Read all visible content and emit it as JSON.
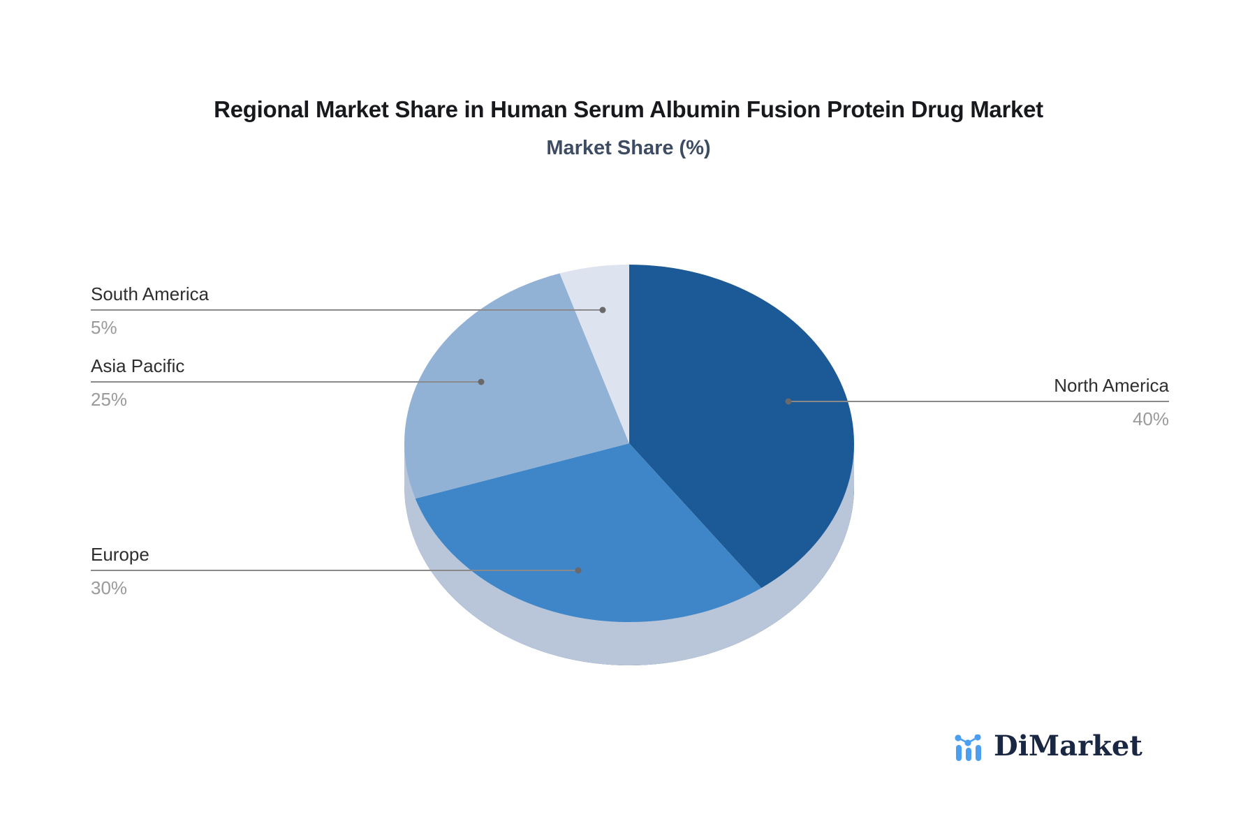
{
  "title": "Regional Market Share in Human Serum Albumin Fusion Protein Drug Market",
  "subtitle": "Market Share (%)",
  "chart_data": {
    "type": "pie",
    "style": "3d",
    "title": "Regional Market Share in Human Serum Albumin Fusion Protein Drug Market",
    "subtitle": "Market Share (%)",
    "unit": "%",
    "start_angle_deg": 270,
    "direction": "clockwise",
    "slices": [
      {
        "label": "North America",
        "value": 40,
        "value_label": "40%",
        "color": "#1b5a96",
        "side_color": "#164369",
        "label_side": "right"
      },
      {
        "label": "Europe",
        "value": 30,
        "value_label": "30%",
        "color": "#3e86c7",
        "side_color": "#2e6898",
        "label_side": "left"
      },
      {
        "label": "Asia Pacific",
        "value": 25,
        "value_label": "25%",
        "color": "#92b2d5",
        "side_color": "#7d97b5",
        "label_side": "left"
      },
      {
        "label": "South America",
        "value": 5,
        "value_label": "5%",
        "color": "#dde4ef",
        "side_color": "#b9c5d8",
        "label_side": "left"
      }
    ],
    "legend": "none",
    "leader_line_color": "#8a8a8a",
    "leader_dot_color": "#696969",
    "label_color": "#2e2e2e",
    "value_color": "#9a9a9a"
  },
  "logo": {
    "text": "DiMarket",
    "icon": "bar-line-chart-icon",
    "icon_color": "#4c9ff0",
    "text_color": "#1a2742"
  }
}
